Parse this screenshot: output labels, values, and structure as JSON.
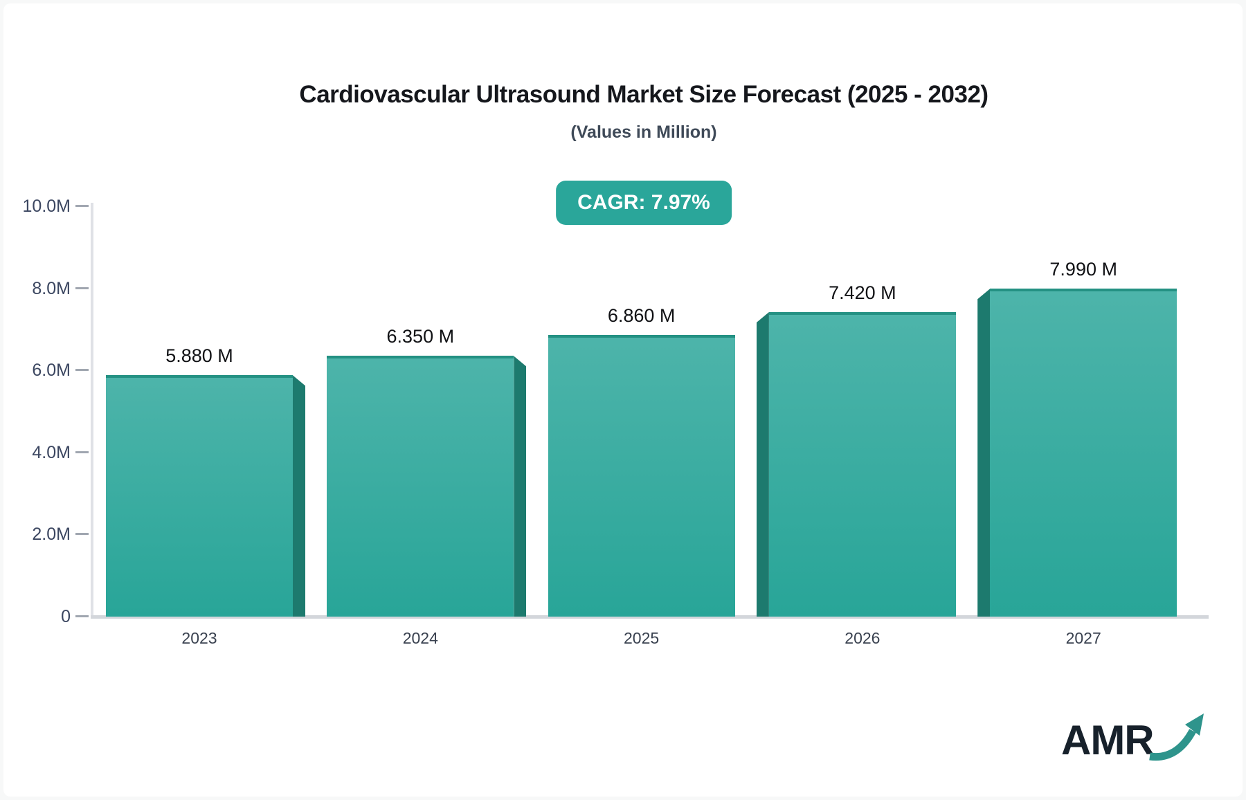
{
  "header": {
    "title": "Cardiovascular Ultrasound Market Size Forecast (2025 - 2032)",
    "subtitle": "(Values in Million)",
    "cagr_label": "CAGR: 7.97%"
  },
  "chart_data": {
    "type": "bar",
    "title": "Cardiovascular Ultrasound Market Size Forecast (2025 - 2032)",
    "subtitle": "(Values in Million)",
    "unit": "Million",
    "cagr_percent": 7.97,
    "categories": [
      "2023",
      "2024",
      "2025",
      "2026",
      "2027"
    ],
    "values": [
      5.88,
      6.35,
      6.86,
      7.42,
      7.99
    ],
    "value_labels": [
      "5.880 M",
      "6.350 M",
      "6.860 M",
      "7.420 M",
      "7.990 M"
    ],
    "ylim": [
      0,
      10
    ],
    "y_ticks": [
      {
        "label": "10.0M",
        "value": 10
      },
      {
        "label": "8.0M",
        "value": 8
      },
      {
        "label": "6.0M",
        "value": 6
      },
      {
        "label": "4.0M",
        "value": 4
      },
      {
        "label": "2.0M",
        "value": 2
      },
      {
        "label": "0",
        "value": 0
      }
    ],
    "grid": "off",
    "legend": "none",
    "bar_color_top": "#4db4aa",
    "bar_color_bottom": "#28a598",
    "bar_top_edge_color": "#249183",
    "bar_side_color": "#1d7a6e",
    "accent_color": "#2aa69a"
  },
  "logo": {
    "text": "AMR",
    "arrow_color": "#2e948c"
  }
}
